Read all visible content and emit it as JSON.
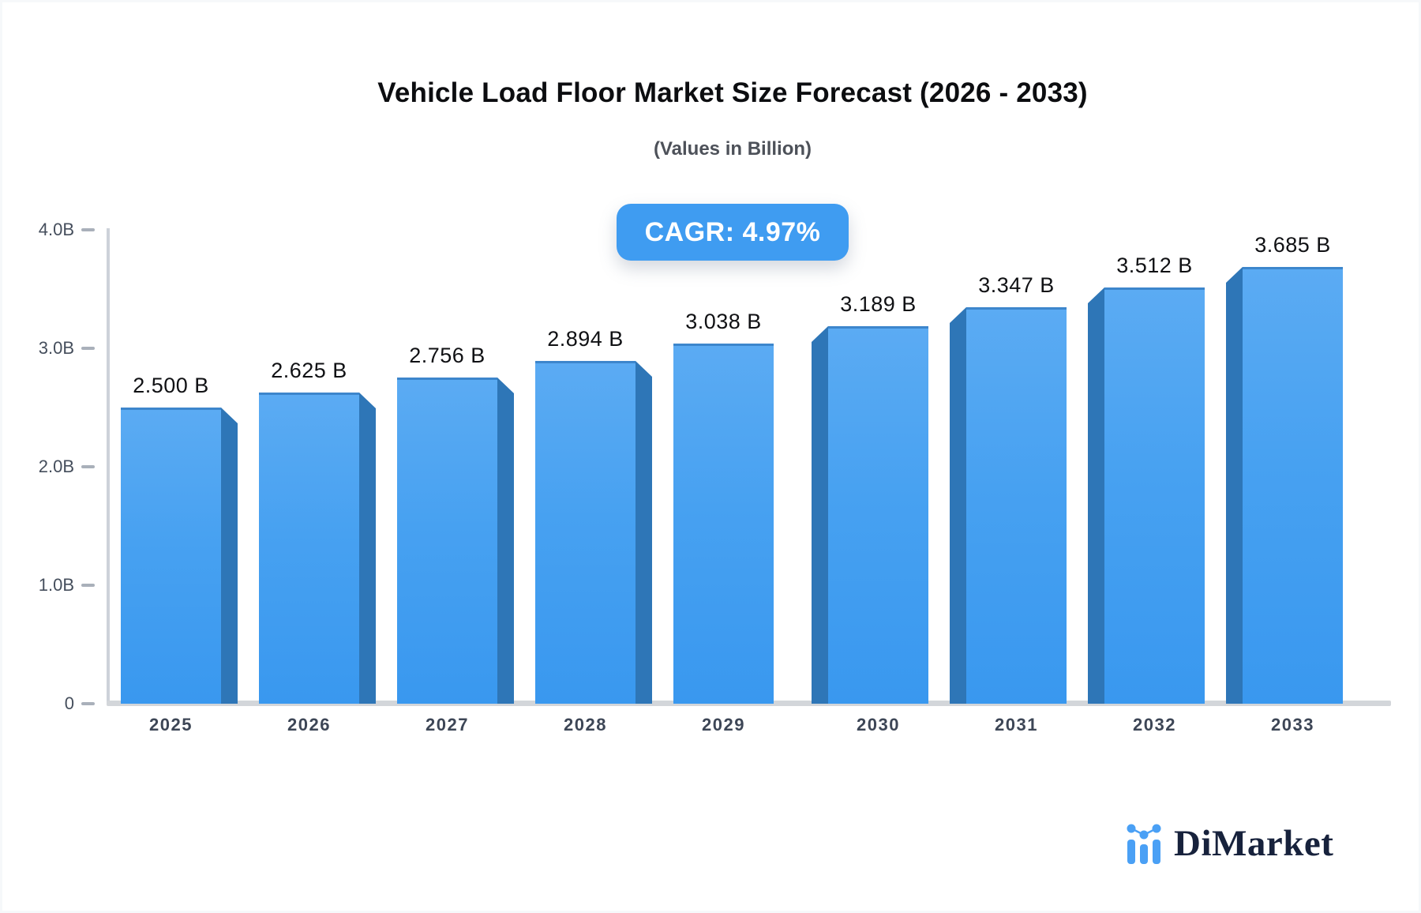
{
  "page": {
    "background": "#f6f8fa",
    "card_background": "#ffffff"
  },
  "header": {
    "title": "Vehicle Load Floor Market Size Forecast (2026 - 2033)",
    "subtitle": "(Values in Billion)"
  },
  "cagr_badge": {
    "label": "CAGR: 4.97%",
    "background": "#3f9cf1",
    "text_color": "#ffffff"
  },
  "chart_data": {
    "type": "bar",
    "title": "Vehicle Load Floor Market Size Forecast (2026 - 2033)",
    "subtitle": "(Values in Billion)",
    "unit": "Billion",
    "cagr_percent": 4.97,
    "categories": [
      "2025",
      "2026",
      "2027",
      "2028",
      "2029",
      "2030",
      "2031",
      "2032",
      "2033"
    ],
    "values": [
      2.5,
      2.625,
      2.756,
      2.894,
      3.038,
      3.189,
      3.347,
      3.512,
      3.685
    ],
    "value_labels": [
      "2.500 B",
      "2.625 B",
      "2.756 B",
      "2.894 B",
      "3.038 B",
      "3.189 B",
      "3.347 B",
      "3.512 B",
      "3.685 B"
    ],
    "xlabel": "",
    "ylabel": "",
    "ylim": [
      0,
      4.0
    ],
    "y_ticks": [
      {
        "value": 0,
        "label": "0"
      },
      {
        "value": 1.0,
        "label": "1.0B"
      },
      {
        "value": 2.0,
        "label": "2.0B"
      },
      {
        "value": 3.0,
        "label": "3.0B"
      },
      {
        "value": 4.0,
        "label": "4.0B"
      }
    ],
    "grid": false,
    "legend": false,
    "style": {
      "bar_face_top": "#5babf3",
      "bar_face_bottom": "#3998ef",
      "bar_side": "#2e76b7",
      "axis_line": "#cdd2d9",
      "floor_line": "#d3d6da",
      "tick_color": "#a9b0ba"
    }
  },
  "logo": {
    "text": "DiMarket",
    "icon": "mini-bar-line-chart-icon",
    "icon_color": "#4aa0f5",
    "text_color": "#17223c"
  }
}
